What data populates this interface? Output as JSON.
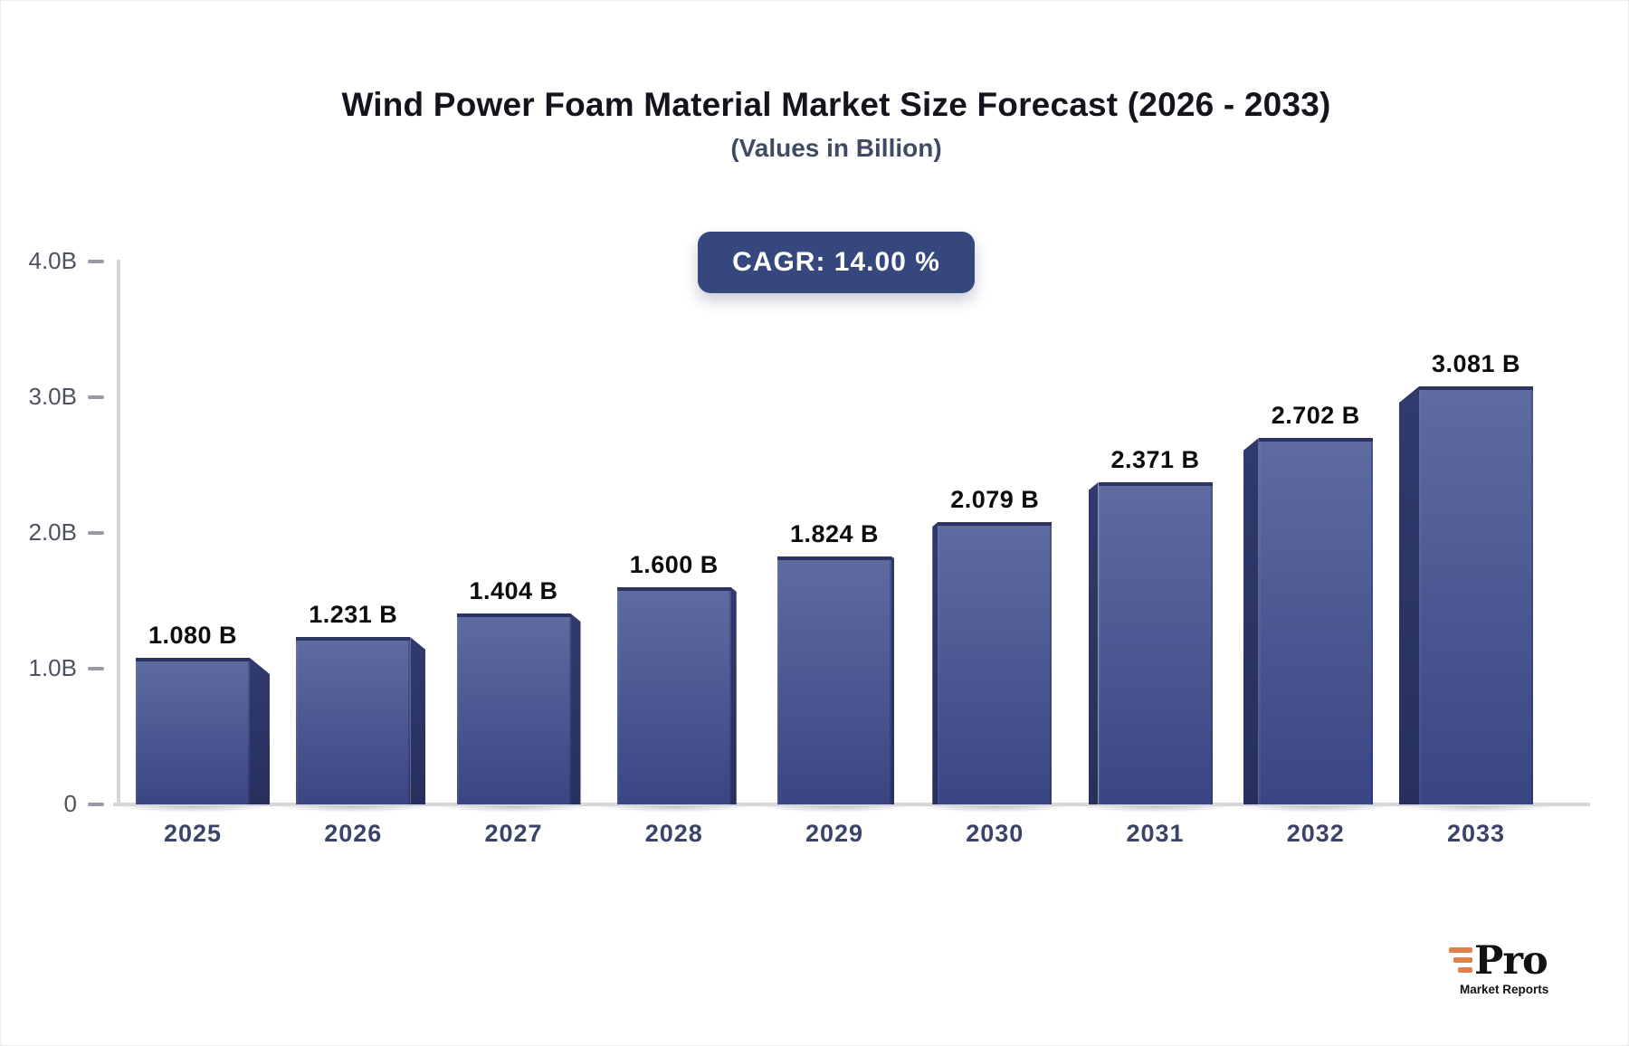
{
  "header": {
    "title": "Wind Power Foam Material Market Size Forecast (2026 - 2033)",
    "subtitle": "(Values in Billion)",
    "cagr_label": "CAGR: 14.00 %"
  },
  "chart_data": {
    "type": "bar",
    "title": "Wind Power Foam Material Market Size Forecast (2026 - 2033)",
    "subtitle": "(Values in Billion)",
    "cagr_pct": 14.0,
    "categories": [
      "2025",
      "2026",
      "2027",
      "2028",
      "2029",
      "2030",
      "2031",
      "2032",
      "2033"
    ],
    "values": [
      1.08,
      1.231,
      1.404,
      1.6,
      1.824,
      2.079,
      2.371,
      2.702,
      3.081
    ],
    "value_labels": [
      "1.080 B",
      "1.231 B",
      "1.404 B",
      "1.600 B",
      "1.824 B",
      "2.079 B",
      "2.371 B",
      "2.702 B",
      "3.081 B"
    ],
    "unit": "Billion",
    "ylim": [
      0,
      4
    ],
    "yticks": [
      {
        "label": "0",
        "value": 0
      },
      {
        "label": "1.0B",
        "value": 1
      },
      {
        "label": "2.0B",
        "value": 2
      },
      {
        "label": "3.0B",
        "value": 3
      },
      {
        "label": "4.0B",
        "value": 4
      }
    ],
    "grid": false,
    "legend": false,
    "colors": {
      "bar_front_top": "#5e6ba1",
      "bar_front_bottom": "#3a4584",
      "bar_top_edge": "#2b3564",
      "bar_side_top": "#303a6d",
      "bar_side_bottom": "#27305d",
      "axis": "#d6d6db",
      "tick": "#9a9aa4",
      "badge_bg": "#36477e",
      "badge_text": "#ffffff"
    }
  },
  "logo": {
    "name": "Pro",
    "subtext": "Market Reports",
    "accent_color": "#df834b"
  }
}
